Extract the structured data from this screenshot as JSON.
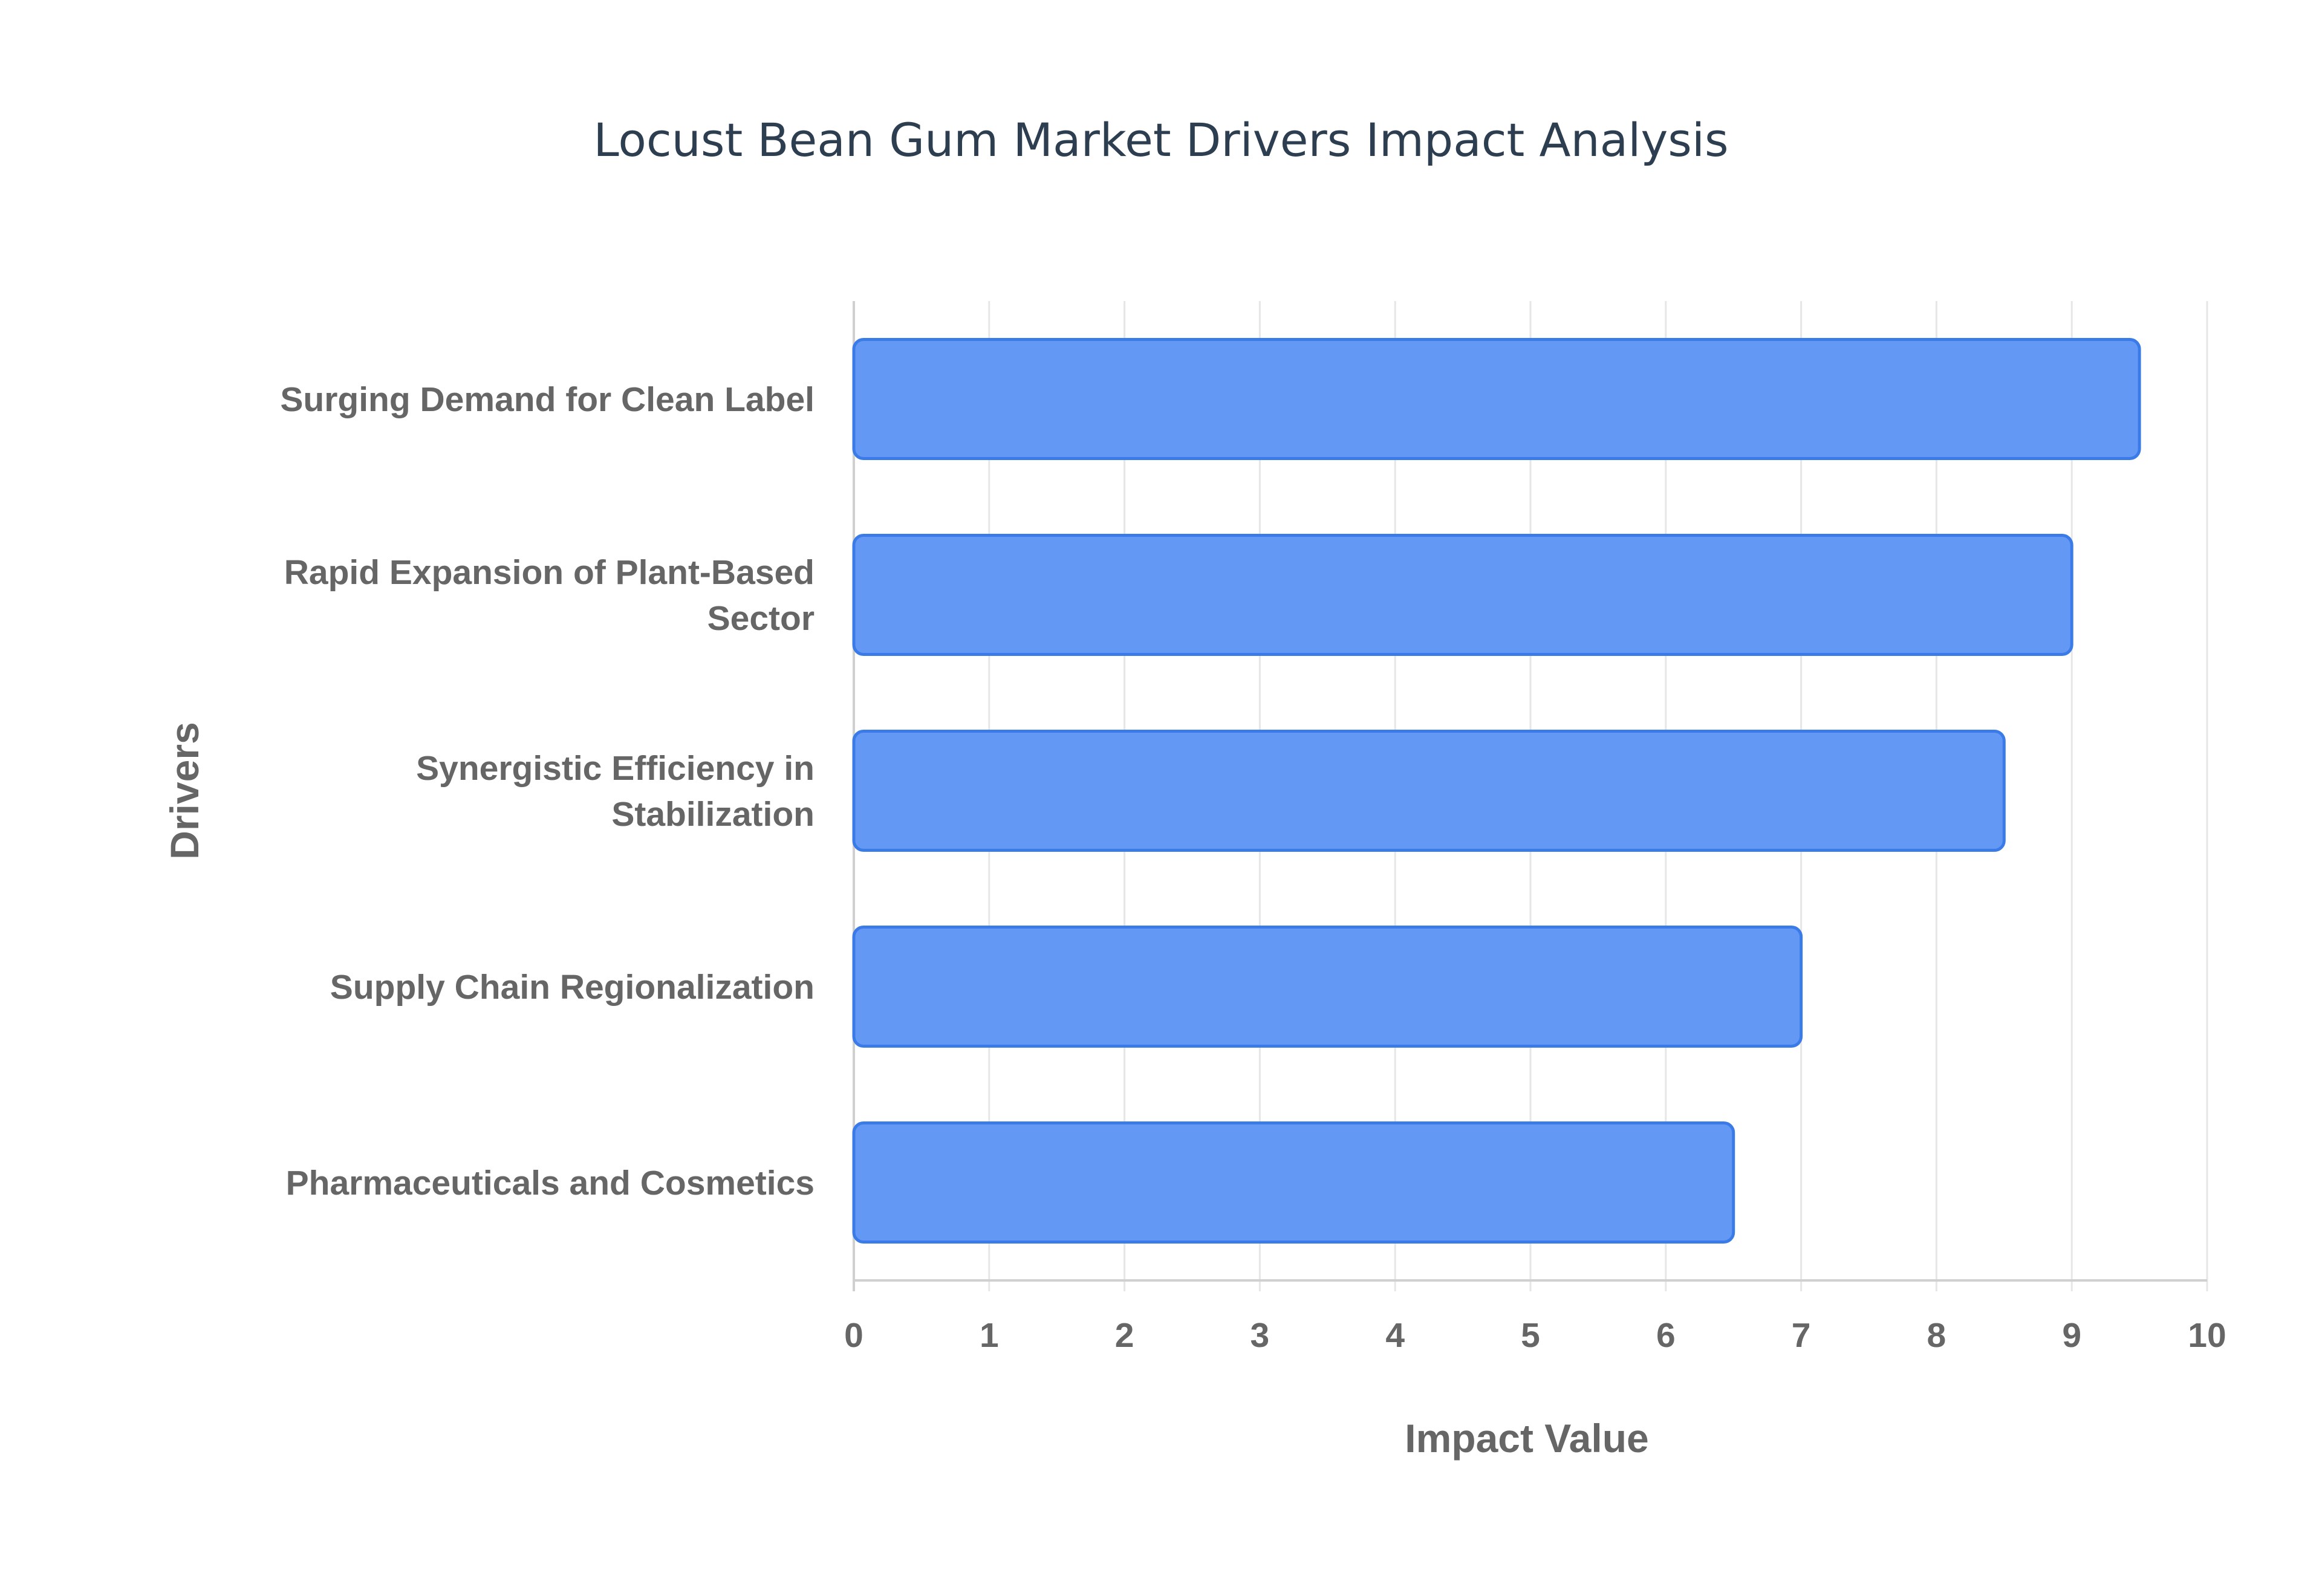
{
  "chart_data": {
    "type": "bar",
    "orientation": "horizontal",
    "title": "Locust Bean Gum Market Drivers Impact Analysis",
    "xlabel": "Impact Value",
    "ylabel": "Drivers",
    "xlim": [
      0,
      10
    ],
    "x_ticks": [
      "0",
      "1",
      "2",
      "3",
      "4",
      "5",
      "6",
      "7",
      "8",
      "9",
      "10"
    ],
    "grid": true,
    "legend": "none",
    "categories": [
      "Surging Demand for Clean Label",
      "Rapid Expansion of Plant-Based Sector",
      "Synergistic Efficiency in Stabilization",
      "Supply Chain Regionalization",
      "Pharmaceuticals and Cosmetics"
    ],
    "category_lines": [
      [
        "Surging Demand for Clean Label"
      ],
      [
        "Rapid Expansion of Plant-Based",
        "Sector"
      ],
      [
        "Synergistic Efficiency in",
        "Stabilization"
      ],
      [
        "Supply Chain Regionalization"
      ],
      [
        "Pharmaceuticals and Cosmetics"
      ]
    ],
    "values": [
      9.5,
      9.0,
      8.5,
      7.0,
      6.5
    ],
    "colors": {
      "bar_fill": "#6399f5",
      "bar_stroke": "#3b7be8",
      "title": "#2c3e50",
      "label": "#666666"
    }
  }
}
